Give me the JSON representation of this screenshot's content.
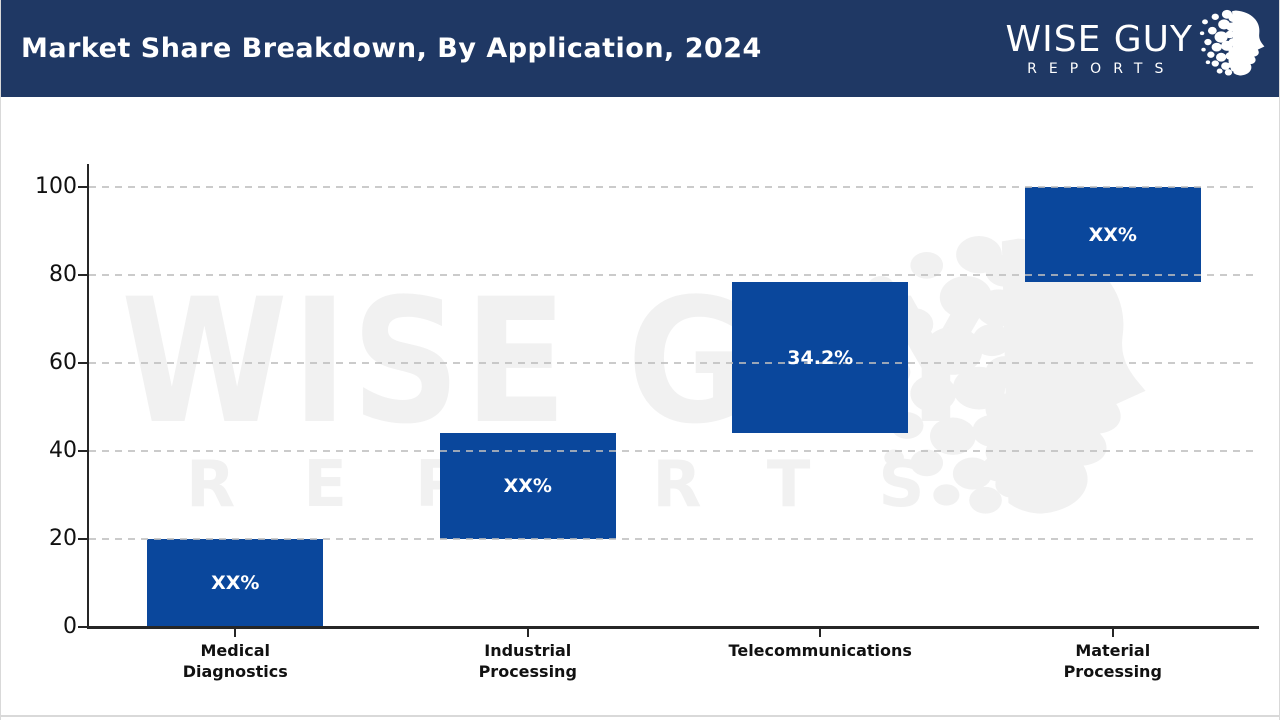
{
  "header": {
    "title": "Market Share Breakdown, By Application, 2024",
    "logo": {
      "wordmark": "WISE GUY",
      "reports": "REPORTS"
    }
  },
  "watermark": {
    "wordmark": "WISE GUY",
    "reports": "REPORTS"
  },
  "colors": {
    "header_bg": "#1f3864",
    "bar": "#0a479c",
    "grid": "#d9d9d9",
    "axis": "#262626",
    "watermark": "#f1f1f1",
    "bar_label_text": "#ffffff",
    "tick_text": "#111111"
  },
  "chart_data": {
    "type": "bar",
    "subtype": "stacked-waterfall",
    "title": "Market Share Breakdown, By Application, 2024",
    "categories": [
      "Medical Diagnostics",
      "Industrial Processing",
      "Telecommunications",
      "Material Processing"
    ],
    "segments": [
      {
        "category": "Medical Diagnostics",
        "category_lines": [
          "Medical",
          "Diagnostics"
        ],
        "start": 0,
        "end": 20,
        "value": 20,
        "label": "XX%"
      },
      {
        "category": "Industrial Processing",
        "category_lines": [
          "Industrial",
          "Processing"
        ],
        "start": 20,
        "end": 44.1,
        "value": 24.1,
        "label": "XX%"
      },
      {
        "category": "Telecommunications",
        "category_lines": [
          "Telecommunications"
        ],
        "start": 44.1,
        "end": 78.3,
        "value": 34.2,
        "label": "34.2%"
      },
      {
        "category": "Material Processing",
        "category_lines": [
          "Material",
          "Processing"
        ],
        "start": 78.3,
        "end": 100,
        "value": 21.7,
        "label": "XX%"
      }
    ],
    "ylabel": "",
    "xlabel": "",
    "ylim": [
      0,
      100
    ],
    "yticks": [
      0,
      20,
      40,
      60,
      80,
      100
    ],
    "grid": "horizontal-dashed",
    "legend": "none",
    "bar_color": "#0a479c"
  }
}
